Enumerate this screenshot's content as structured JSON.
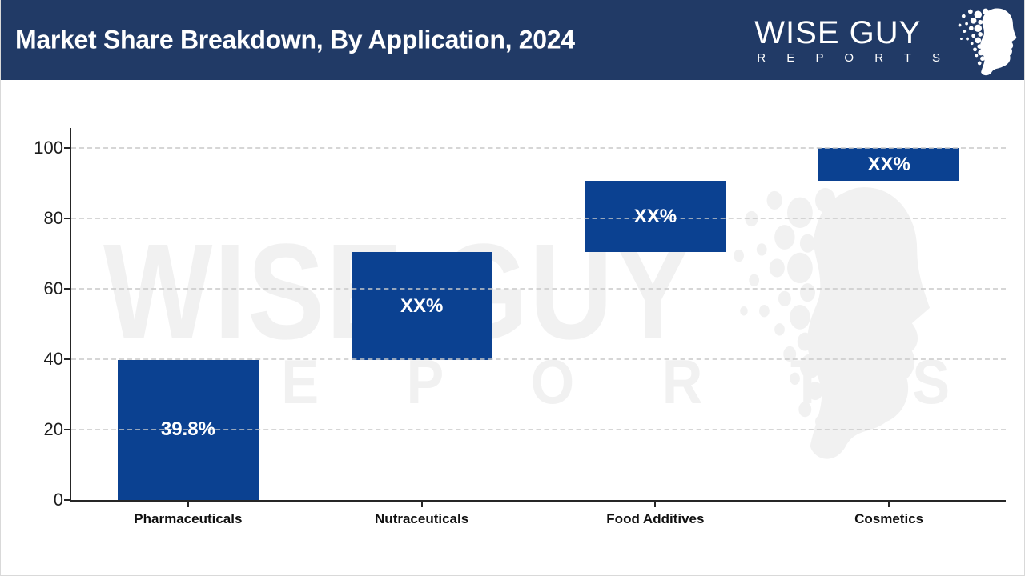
{
  "header": {
    "title": "Market Share Breakdown, By Application, 2024",
    "bg_color": "#213a66",
    "logo": {
      "line1": "WISE GUY",
      "line2": "R E P O R T S"
    }
  },
  "watermark": {
    "line1": "WISE GUY",
    "line2": "R E P O R T S"
  },
  "chart_data": {
    "type": "bar",
    "subtype": "waterfall",
    "title": "Market Share Breakdown, By Application, 2024",
    "categories": [
      "Pharmaceuticals",
      "Nutraceuticals",
      "Food Additives",
      "Cosmetics"
    ],
    "segments": [
      {
        "category": "Pharmaceuticals",
        "start": 0,
        "end": 39.8,
        "value": 39.8,
        "label": "39.8%"
      },
      {
        "category": "Nutraceuticals",
        "start": 39.8,
        "end": 70.4,
        "value": 30.6,
        "label": "XX%"
      },
      {
        "category": "Food Additives",
        "start": 70.4,
        "end": 90.6,
        "value": 20.2,
        "label": "XX%"
      },
      {
        "category": "Cosmetics",
        "start": 90.6,
        "end": 100,
        "value": 9.4,
        "label": "XX%"
      }
    ],
    "xlabel": "",
    "ylabel": "",
    "ylim": [
      0,
      100
    ],
    "yticks": [
      0,
      20,
      40,
      60,
      80,
      100
    ],
    "grid": "horizontal dashed",
    "legend": "none",
    "bar_color": "#0b4191",
    "grid_color": "#c9c9c9",
    "axis_color": "#262626",
    "value_label_color": "#ffffff",
    "tick_label_color": "#1c1c1c",
    "category_label_color": "#101010"
  }
}
